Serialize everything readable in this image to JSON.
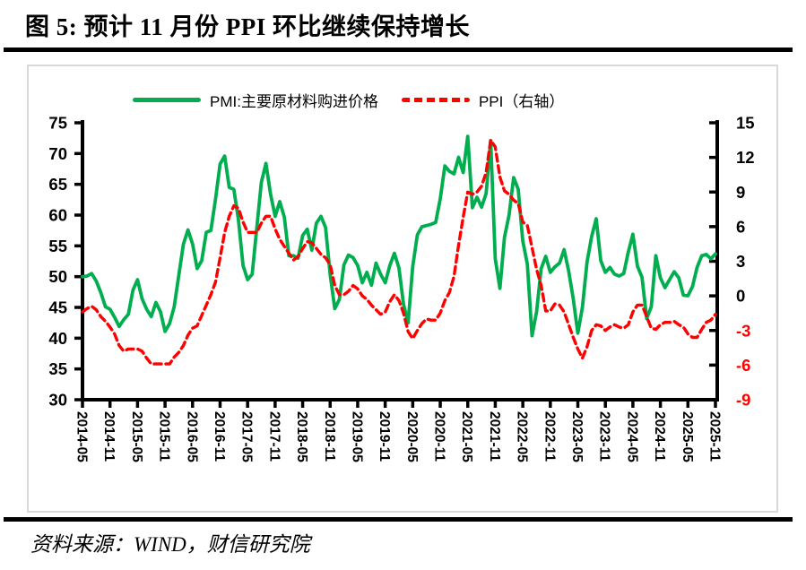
{
  "title": "图 5:  预计 11 月份 PPI 环比继续保持增长",
  "source": "资料来源：WIND，财信研究院",
  "legend": [
    {
      "label": "PMI:主要原材料购进价格",
      "color": "#00AE50",
      "style": "solid"
    },
    {
      "label": "PPI（右轴）",
      "color": "#FF0000",
      "style": "dashed"
    }
  ],
  "chart_data": {
    "type": "line",
    "title": "",
    "x_start": "2014-05",
    "x_end": "2025-11",
    "frequency": "monthly",
    "grid": false,
    "legend_position": "top",
    "x_tick_labels": [
      "2014-05",
      "2014-11",
      "2015-05",
      "2015-11",
      "2016-05",
      "2016-11",
      "2017-05",
      "2017-11",
      "2018-05",
      "2018-11",
      "2019-05",
      "2019-11",
      "2020-05",
      "2020-11",
      "2021-05",
      "2021-11",
      "2022-05",
      "2022-11",
      "2023-05",
      "2023-11",
      "2024-05",
      "2024-11",
      "2025-05",
      "2025-11"
    ],
    "left_axis": {
      "min": 30,
      "max": 75,
      "ticks": [
        75,
        70,
        65,
        60,
        55,
        50,
        45,
        40,
        35,
        30
      ],
      "label_color": "#000000"
    },
    "right_axis": {
      "min": -9,
      "max": 15,
      "ticks": [
        15,
        12,
        9,
        6,
        3,
        0,
        -3,
        -6,
        -9
      ],
      "label_color": "#000000",
      "negative_color": "#FF0000"
    },
    "series": [
      {
        "name": "PMI:主要原材料购进价格",
        "axis": "left",
        "color": "#00AE50",
        "dash": false,
        "values": [
          50.0,
          50.1,
          50.5,
          49.3,
          47.4,
          45.1,
          44.7,
          43.4,
          41.9,
          43.0,
          43.9,
          47.8,
          49.5,
          46.4,
          44.7,
          43.5,
          45.8,
          44.3,
          41.1,
          42.4,
          45.1,
          50.2,
          55.3,
          57.6,
          55.3,
          51.3,
          52.6,
          57.2,
          57.5,
          62.6,
          68.3,
          69.6,
          64.5,
          64.2,
          59.3,
          51.8,
          49.5,
          50.4,
          57.9,
          65.3,
          68.4,
          63.4,
          59.8,
          62.2,
          59.7,
          53.4,
          53.4,
          53.0,
          56.7,
          57.7,
          54.3,
          58.7,
          59.8,
          58.0,
          50.3,
          44.8,
          46.3,
          51.9,
          53.5,
          53.1,
          51.8,
          49.0,
          50.7,
          48.6,
          52.2,
          50.4,
          49.0,
          51.8,
          53.8,
          51.4,
          45.5,
          42.5,
          51.6,
          56.8,
          58.1,
          58.3,
          58.5,
          58.8,
          62.6,
          68.0,
          67.1,
          66.7,
          69.4,
          66.9,
          72.8,
          61.2,
          62.9,
          61.3,
          63.5,
          72.1,
          52.9,
          48.1,
          56.4,
          60.0,
          66.1,
          64.2,
          55.8,
          52.0,
          40.4,
          44.3,
          51.3,
          53.3,
          50.7,
          51.6,
          52.2,
          54.4,
          50.9,
          46.4,
          40.8,
          45.0,
          52.4,
          56.5,
          59.4,
          52.6,
          50.7,
          51.5,
          50.4,
          50.1,
          50.5,
          54.0,
          56.9,
          51.7,
          49.9,
          43.2,
          45.1,
          53.4,
          49.8,
          48.2,
          49.5,
          50.8,
          49.8,
          47.0,
          46.9,
          48.4,
          51.5,
          53.4,
          53.6,
          52.9,
          53.7
        ]
      },
      {
        "name": "PPI（右轴）",
        "axis": "right",
        "color": "#FF0000",
        "dash": true,
        "values": [
          -1.4,
          -1.1,
          -0.9,
          -1.2,
          -1.8,
          -2.2,
          -2.7,
          -3.3,
          -4.3,
          -4.8,
          -4.6,
          -4.6,
          -4.6,
          -4.8,
          -5.4,
          -5.9,
          -5.9,
          -5.9,
          -5.9,
          -5.9,
          -5.3,
          -4.9,
          -4.3,
          -3.4,
          -2.8,
          -2.6,
          -1.7,
          -0.8,
          0.1,
          1.2,
          3.3,
          5.5,
          6.9,
          7.8,
          7.6,
          6.4,
          5.5,
          5.5,
          5.5,
          6.3,
          6.9,
          6.9,
          5.8,
          4.9,
          4.3,
          3.7,
          3.1,
          3.4,
          4.1,
          4.7,
          4.6,
          4.1,
          3.6,
          3.3,
          2.7,
          0.9,
          0.1,
          0.1,
          0.4,
          0.9,
          0.6,
          0.0,
          -0.3,
          -0.8,
          -1.2,
          -1.6,
          -1.4,
          -0.5,
          0.1,
          -0.4,
          -1.5,
          -3.1,
          -3.7,
          -3.0,
          -2.4,
          -2.0,
          -2.1,
          -2.1,
          -1.5,
          -0.4,
          0.3,
          1.7,
          4.4,
          6.8,
          9.0,
          8.8,
          9.0,
          9.5,
          10.7,
          13.5,
          12.9,
          10.3,
          9.1,
          8.8,
          8.3,
          8.0,
          6.4,
          6.1,
          4.2,
          2.3,
          0.9,
          -1.3,
          -1.3,
          -0.7,
          -0.8,
          -1.4,
          -2.5,
          -3.6,
          -4.6,
          -5.4,
          -4.4,
          -3.0,
          -2.5,
          -2.6,
          -3.0,
          -2.7,
          -2.5,
          -2.7,
          -2.8,
          -2.5,
          -1.4,
          -0.8,
          -0.8,
          -1.8,
          -2.8,
          -2.9,
          -2.5,
          -2.3,
          -2.3,
          -2.2,
          -2.5,
          -2.7,
          -3.3,
          -3.6,
          -3.6,
          -2.9,
          -2.3,
          -2.1,
          -1.6
        ]
      }
    ]
  }
}
